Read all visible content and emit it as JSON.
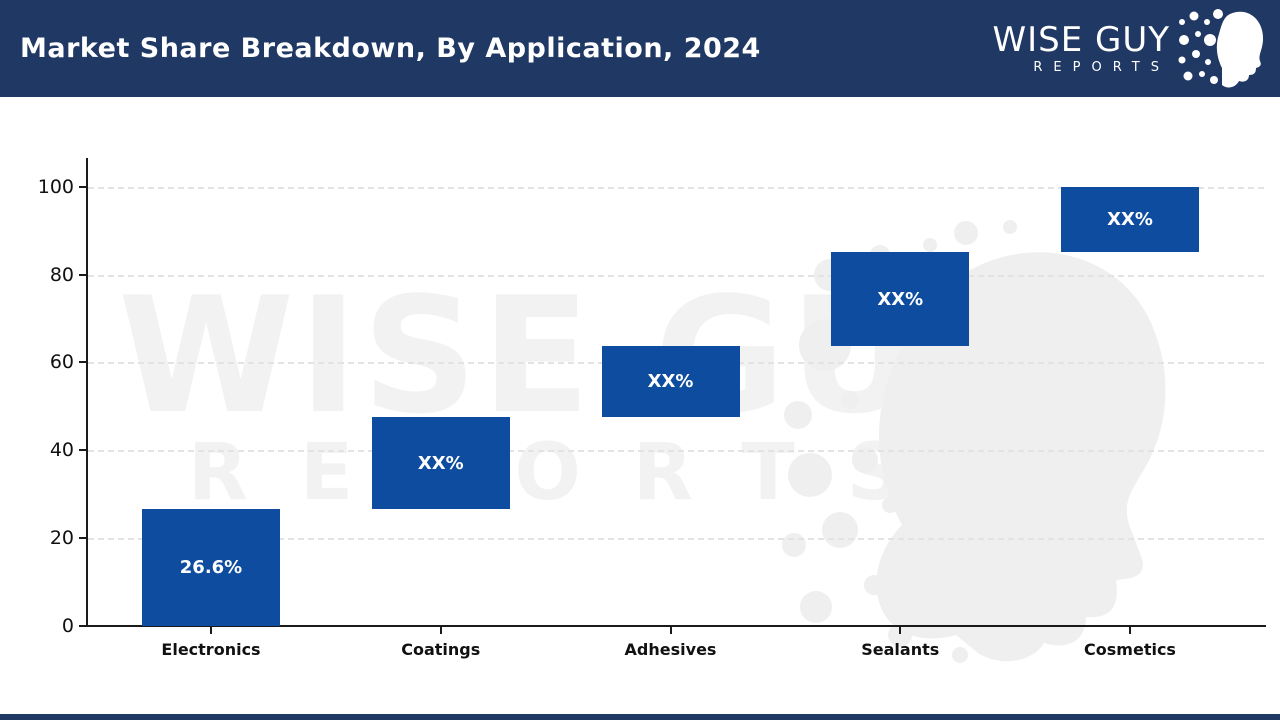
{
  "page": {
    "accent_color": "#203864",
    "bar_color": "#0e4c9f",
    "grid_color": "#e3e3e3",
    "background": "#ffffff"
  },
  "header": {
    "title": "Market Share Breakdown, By Application, 2024",
    "logo": {
      "line1": "WISE GUY",
      "line2": "REPORTS"
    }
  },
  "watermark": {
    "line1": "WISE GUY",
    "line2": "REPORTS"
  },
  "chart_data": {
    "type": "bar",
    "variant": "waterfall",
    "title": "Market Share Breakdown, By Application, 2024",
    "categories": [
      "Electronics",
      "Coatings",
      "Adhesives",
      "Sealants",
      "Cosmetics"
    ],
    "segments": [
      {
        "category": "Electronics",
        "start": 0,
        "end": 26.6,
        "label": "26.6%"
      },
      {
        "category": "Coatings",
        "start": 26.6,
        "end": 47.6,
        "label": "XX%"
      },
      {
        "category": "Adhesives",
        "start": 47.6,
        "end": 63.7,
        "label": "XX%"
      },
      {
        "category": "Sealants",
        "start": 63.7,
        "end": 85.2,
        "label": "XX%"
      },
      {
        "category": "Cosmetics",
        "start": 85.2,
        "end": 100,
        "label": "XX%"
      }
    ],
    "bar_value_labels": [
      "26.6%",
      "XX%",
      "XX%",
      "XX%",
      "XX%"
    ],
    "xlabel": "",
    "ylabel": "",
    "yticks": [
      0,
      20,
      40,
      60,
      80,
      100
    ],
    "ylim": [
      0,
      107
    ],
    "grid": "horizontal-dashed",
    "legend": "none",
    "bar_color": "#0e4c9f",
    "bar_label_color": "#ffffff"
  }
}
